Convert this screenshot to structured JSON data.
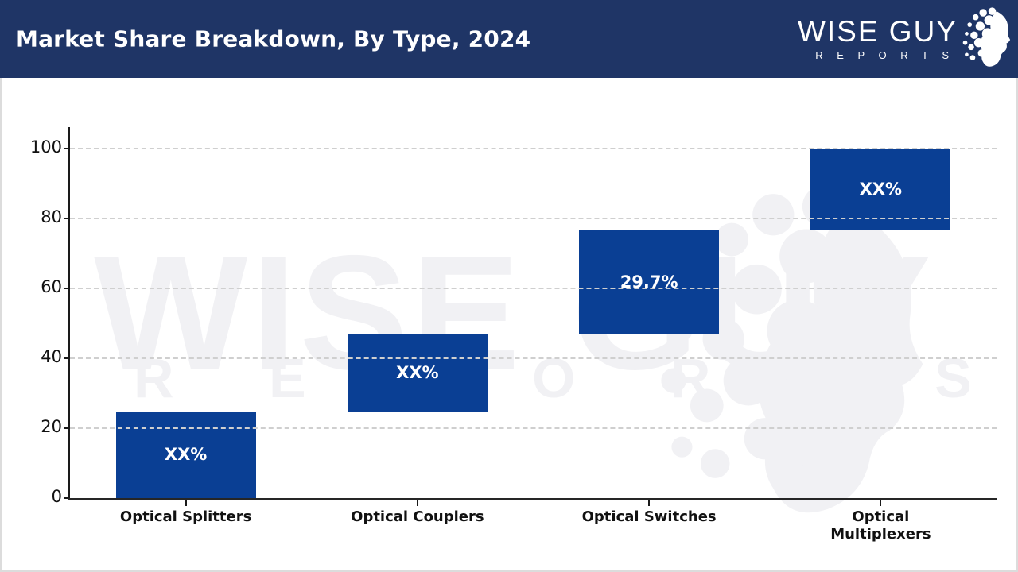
{
  "header": {
    "title": "Market Share Breakdown, By Type, 2024",
    "logo": {
      "wordmark": "WISE GUY",
      "subtitle": "R E P O R T S"
    }
  },
  "watermark": {
    "wordmark": "WISE GUY",
    "subtitle": "R E P O R T S"
  },
  "colors": {
    "header_bg": "#1f3566",
    "bar_fill": "#0a3f94",
    "grid": "#cfcfcf",
    "axis": "#1a1a1a",
    "tick_text": "#111111",
    "bar_label_text": "#ffffff",
    "watermark": "#f1f1f4"
  },
  "chart_data": {
    "type": "bar",
    "subtype": "floating-waterfall",
    "title": "Market Share Breakdown, By Type, 2024",
    "xlabel": "",
    "ylabel": "",
    "ylim": [
      0,
      106
    ],
    "yticks": [
      0,
      20,
      40,
      60,
      80,
      100
    ],
    "grid": "horizontal-dashed",
    "legend": "none",
    "bar_color": "#0a3f94",
    "categories": [
      "Optical Splitters",
      "Optical Couplers",
      "Optical Switches",
      "Optical Multiplexers"
    ],
    "bars": [
      {
        "category": "Optical Splitters",
        "start": 0,
        "end": 24.8,
        "label": "XX%"
      },
      {
        "category": "Optical Couplers",
        "start": 24.8,
        "end": 47.0,
        "label": "XX%"
      },
      {
        "category": "Optical Switches",
        "start": 47.0,
        "end": 76.7,
        "label": "29.7%"
      },
      {
        "category": "Optical Multiplexers",
        "start": 76.7,
        "end": 100.0,
        "label": "XX%"
      }
    ]
  }
}
